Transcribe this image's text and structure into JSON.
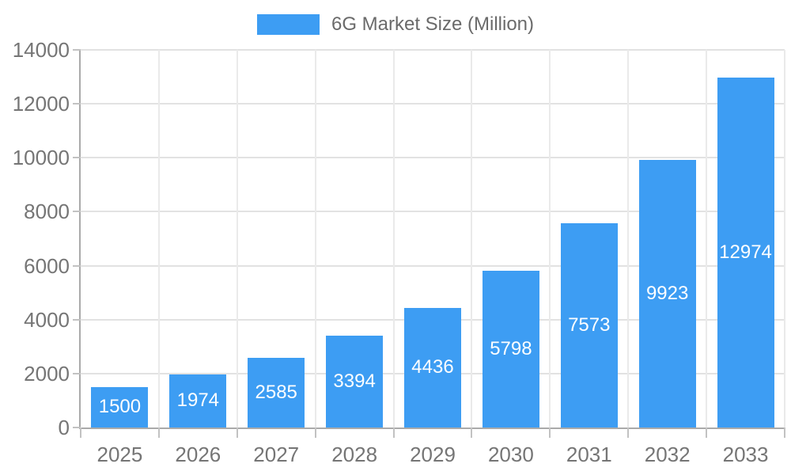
{
  "chart_data": {
    "type": "bar",
    "title": "",
    "legend": "6G Market Size (Million)",
    "legend_position": "top-center",
    "categories": [
      "2025",
      "2026",
      "2027",
      "2028",
      "2029",
      "2030",
      "2031",
      "2032",
      "2033"
    ],
    "series": [
      {
        "name": "6G Market Size (Million)",
        "values": [
          1500,
          1974,
          2585,
          3394,
          4436,
          5798,
          7573,
          9923,
          12974
        ]
      }
    ],
    "value_labels": "inside-center",
    "xlabel": "",
    "ylabel": "",
    "ylim": [
      0,
      14000
    ],
    "yticks": [
      0,
      2000,
      4000,
      6000,
      8000,
      10000,
      12000,
      14000
    ],
    "grid": true
  },
  "colors": {
    "bar": "#3D9DF3",
    "bar_label": "#FFFFFF",
    "axis_line": "#AAAAAA",
    "tick_mark": "#C2C2C2",
    "gridline_h": "#E2E2E2",
    "gridline_v": "#EAEAEA",
    "tick_label": "#757575",
    "legend_text": "#6A6A6A",
    "background": "#FFFFFF"
  }
}
